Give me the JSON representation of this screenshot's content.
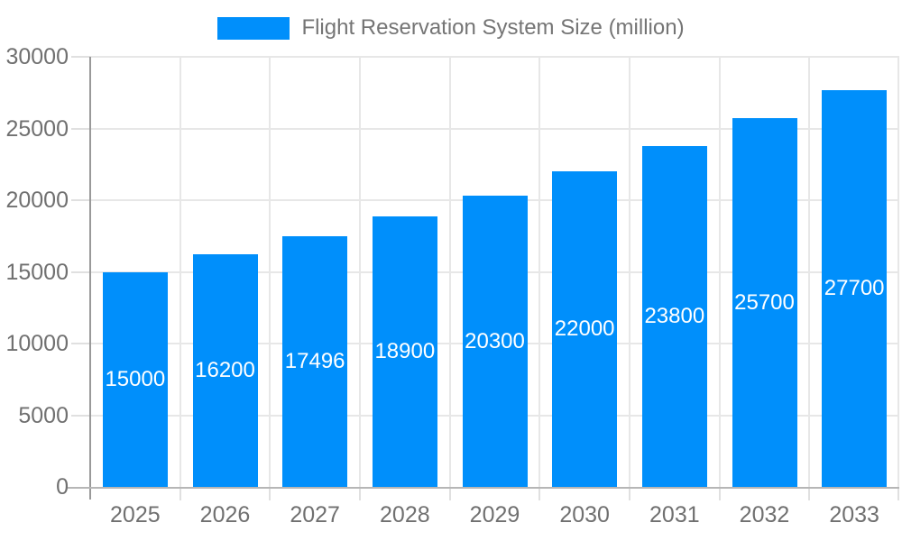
{
  "chart_data": {
    "type": "bar",
    "title": "Flight Reservation System Size (million)",
    "categories": [
      "2025",
      "2026",
      "2027",
      "2028",
      "2029",
      "2030",
      "2031",
      "2032",
      "2033"
    ],
    "values": [
      15000,
      16200,
      17496,
      18900,
      20300,
      22000,
      23800,
      25700,
      27700
    ],
    "xlabel": "",
    "ylabel": "",
    "ylim": [
      0,
      30000
    ],
    "y_ticks": [
      0,
      5000,
      10000,
      15000,
      20000,
      25000,
      30000
    ],
    "grid": true,
    "legend_position": "top",
    "bar_color": "#008ffb",
    "value_label_color": "#ffffff"
  },
  "legend": {
    "label": "Flight Reservation System Size (million)"
  },
  "colors": {
    "background": "#ffffff",
    "gridline": "#e7e7e7",
    "axis_line": "#999999",
    "baseline": "#b6b6b6",
    "tick_stub": "#e0e0e0",
    "tick_label": "#707070",
    "legend_text": "#757575"
  }
}
